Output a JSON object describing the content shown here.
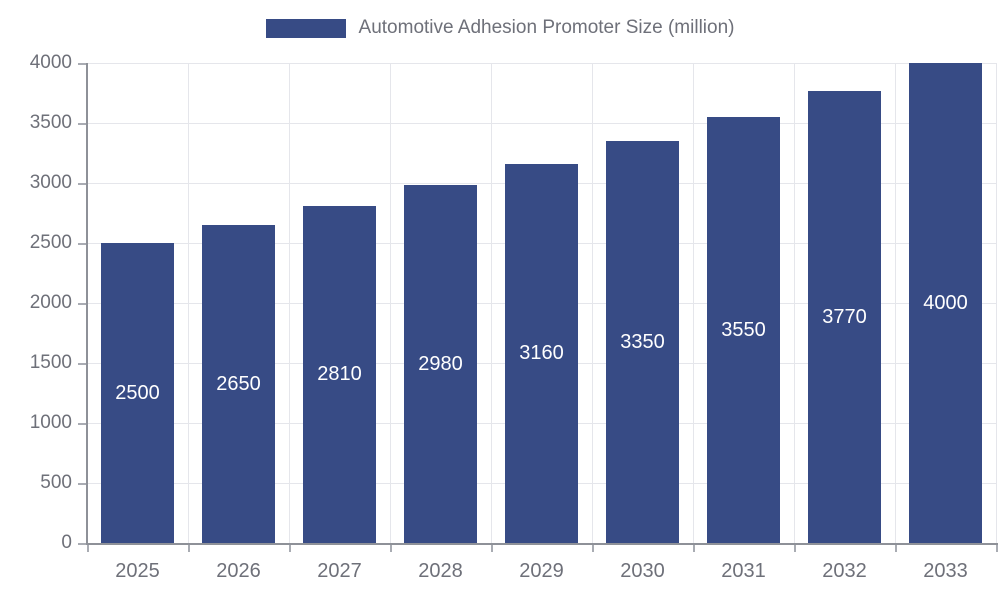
{
  "chart_data": {
    "type": "bar",
    "title": "Automotive Adhesion Promoter Size (million)",
    "categories": [
      "2025",
      "2026",
      "2027",
      "2028",
      "2029",
      "2030",
      "2031",
      "2032",
      "2033"
    ],
    "values": [
      2500,
      2650,
      2810,
      2980,
      3160,
      3350,
      3550,
      3770,
      4000
    ],
    "xlabel": "",
    "ylabel": "",
    "ylim": [
      0,
      4000
    ],
    "yticks": [
      0,
      500,
      1000,
      1500,
      2000,
      2500,
      3000,
      3500,
      4000
    ],
    "grid": true,
    "legend_position": "top-center",
    "bar_labels_inside": true,
    "colors": {
      "bar": "#374B85",
      "bar_label": "#FFFFFF",
      "axis_line": "#8E9198",
      "axis_tick": "#A9ACB3",
      "grid_line": "#E5E6EB",
      "text": "#6E7079",
      "background": "#FFFFFF"
    }
  }
}
